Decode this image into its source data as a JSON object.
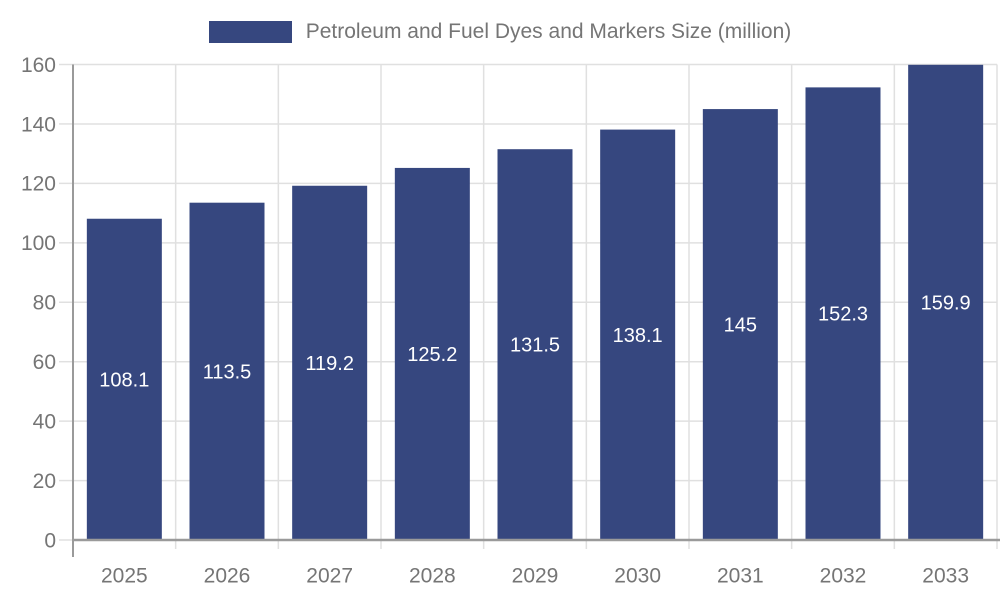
{
  "legend": {
    "label": "Petroleum and Fuel Dyes and Markers Size (million)"
  },
  "chart_data": {
    "type": "bar",
    "title": "",
    "xlabel": "",
    "ylabel": "",
    "series_name": "Petroleum and Fuel Dyes and Markers Size (million)",
    "categories": [
      "2025",
      "2026",
      "2027",
      "2028",
      "2029",
      "2030",
      "2031",
      "2032",
      "2033"
    ],
    "values": [
      108.1,
      113.5,
      119.2,
      125.2,
      131.5,
      138.1,
      145,
      152.3,
      159.9
    ],
    "ylim": [
      0,
      160
    ],
    "ytick_step": 20,
    "grid": true,
    "legend_position": "top-center",
    "bar_color": "#36477F",
    "value_label_color": "#FFFFFF",
    "grid_color": "#E0E0E0",
    "axis_color": "#9A9A9A",
    "tick_label_color": "#757575"
  }
}
